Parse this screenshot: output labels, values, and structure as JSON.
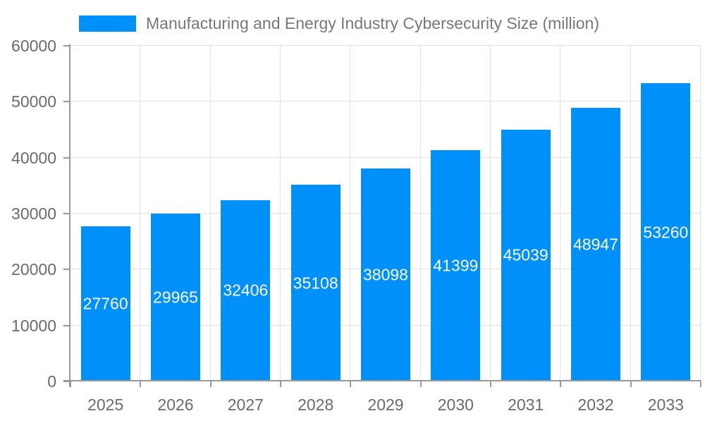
{
  "legend": {
    "series_label": "Manufacturing and Energy Industry Cybersecurity Size (million)"
  },
  "chart_data": {
    "type": "bar",
    "title": "Manufacturing and Energy Industry Cybersecurity Size (million)",
    "categories": [
      "2025",
      "2026",
      "2027",
      "2028",
      "2029",
      "2030",
      "2031",
      "2032",
      "2033"
    ],
    "values": [
      27760,
      29965,
      32406,
      35108,
      38098,
      41399,
      45039,
      48947,
      53260
    ],
    "series": [
      {
        "name": "Manufacturing and Energy Industry Cybersecurity Size (million)",
        "values": [
          27760,
          29965,
          32406,
          35108,
          38098,
          41399,
          45039,
          48947,
          53260
        ]
      }
    ],
    "xlabel": "",
    "ylabel": "",
    "ylim": [
      0,
      60000
    ],
    "y_ticks": [
      0,
      10000,
      20000,
      30000,
      40000,
      50000,
      60000
    ],
    "grid": true,
    "value_labels": "inside-center",
    "legend_position": "top-left",
    "colors": {
      "bar": "#0090fa",
      "grid": "#e2e2e2",
      "axis": "#999999",
      "tick_label": "#6b6b6b",
      "title": "#787878",
      "value_label": "#ffffff",
      "background": "#ffffff"
    }
  }
}
